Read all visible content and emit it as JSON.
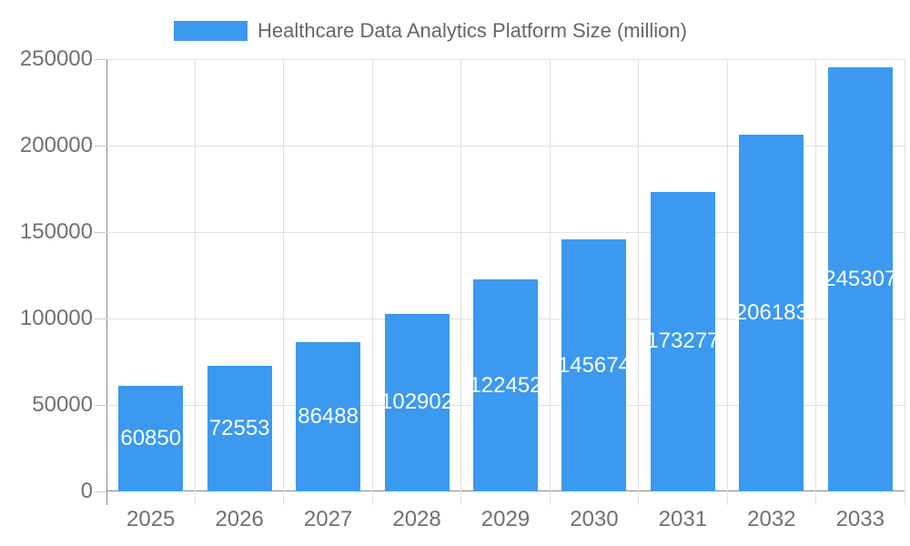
{
  "chart_data": {
    "type": "bar",
    "title": "Healthcare Data Analytics Platform Size (million)",
    "categories": [
      "2025",
      "2026",
      "2027",
      "2028",
      "2029",
      "2030",
      "2031",
      "2032",
      "2033"
    ],
    "values": [
      60850,
      72553,
      86488,
      102902,
      122452,
      145674,
      173277,
      206183,
      245307
    ],
    "xlabel": "",
    "ylabel": "",
    "ylim": [
      0,
      250000
    ],
    "y_ticks": [
      0,
      50000,
      100000,
      150000,
      200000,
      250000
    ],
    "legend_position": "top",
    "grid": true,
    "value_labels": "inside-center"
  },
  "colors": {
    "bar": "#3b99f0",
    "value_label": "#ffffff",
    "gridline": "#e0e0e0",
    "axis_line": "#898989",
    "tick_label": "#717171",
    "legend_text": "#666666",
    "background": "#ffffff"
  }
}
